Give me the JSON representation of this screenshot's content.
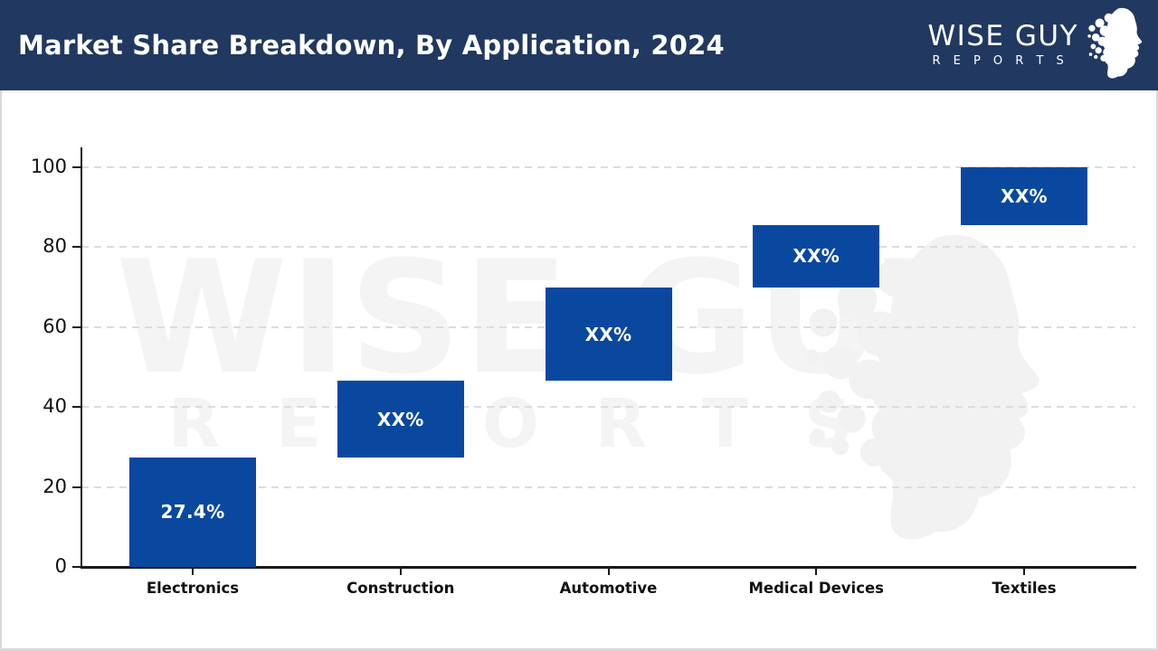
{
  "header": {
    "title": "Market Share Breakdown, By Application, 2024",
    "logo": {
      "line1": "WISE GUY",
      "line2": "R E P O R T S"
    }
  },
  "watermark": {
    "line1": "WISE GUY",
    "line2": "R E P O R T S"
  },
  "colors": {
    "header_bg": "#213861",
    "bar": "#0a48a0",
    "bar_label": "#ffffff",
    "grid": "#dcdcdc",
    "axis": "#1a1a1a",
    "watermark": "#f4f4f4"
  },
  "chart_data": {
    "type": "bar",
    "subtype": "waterfall",
    "title": "Market Share Breakdown, By Application, 2024",
    "categories": [
      "Electronics",
      "Construction",
      "Automotive",
      "Medical Devices",
      "Textiles"
    ],
    "segments": [
      {
        "category": "Electronics",
        "start": 0,
        "end": 27.4,
        "label": "27.4%"
      },
      {
        "category": "Construction",
        "start": 27.4,
        "end": 46.5,
        "label": "XX%"
      },
      {
        "category": "Automotive",
        "start": 46.5,
        "end": 70,
        "label": "XX%"
      },
      {
        "category": "Medical Devices",
        "start": 70,
        "end": 85.5,
        "label": "XX%"
      },
      {
        "category": "Textiles",
        "start": 85.5,
        "end": 100,
        "label": "XX%"
      }
    ],
    "yticks": [
      0,
      20,
      40,
      60,
      80,
      100
    ],
    "ylim": [
      0,
      105
    ],
    "xlabel": "",
    "ylabel": "",
    "grid": "horizontal-dashed",
    "legend": "none"
  }
}
